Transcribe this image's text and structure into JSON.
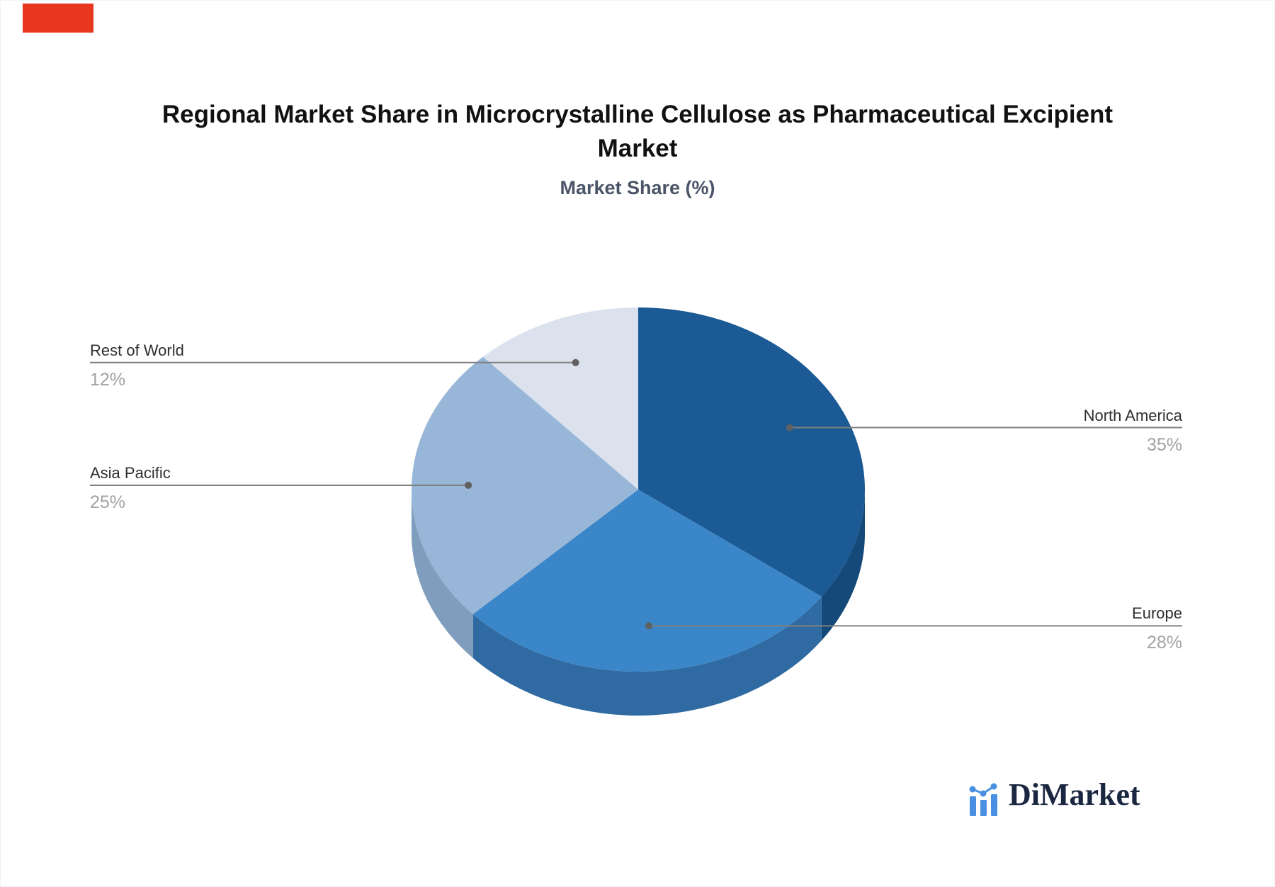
{
  "annotation_marker": {
    "color": "#e8371f"
  },
  "title": "Regional Market Share in Microcrystalline Cellulose as Pharmaceutical Excipient Market",
  "subtitle": "Market Share (%)",
  "chart_data": {
    "type": "pie",
    "title": "Regional Market Share in Microcrystalline Cellulose as Pharmaceutical Excipient Market",
    "subtitle": "Market Share (%)",
    "unit": "%",
    "style_3d": true,
    "start_angle_deg": 0,
    "direction": "clockwise",
    "legend": "none",
    "connector_color": "#808080",
    "dot_color": "#606060",
    "slices": [
      {
        "label": "North America",
        "value": 35,
        "display_value": "35%",
        "color": "#1b5a94",
        "side_color": "#15497a",
        "label_side": "right"
      },
      {
        "label": "Europe",
        "value": 28,
        "display_value": "28%",
        "color": "#3b86c8",
        "side_color": "#2f6aa2",
        "label_side": "right"
      },
      {
        "label": "Asia Pacific",
        "value": 25,
        "display_value": "25%",
        "color": "#97b6d8",
        "side_color": "#7f9dbd",
        "label_side": "left"
      },
      {
        "label": "Rest of World",
        "value": 12,
        "display_value": "12%",
        "color": "#dbe2ee",
        "side_color": "#b8c5d8",
        "label_side": "left"
      }
    ]
  },
  "logo": {
    "text": "DiMarket",
    "icon": "bar-line-chart-icon",
    "icon_color": "#4a90e2",
    "text_color": "#1b2740"
  }
}
